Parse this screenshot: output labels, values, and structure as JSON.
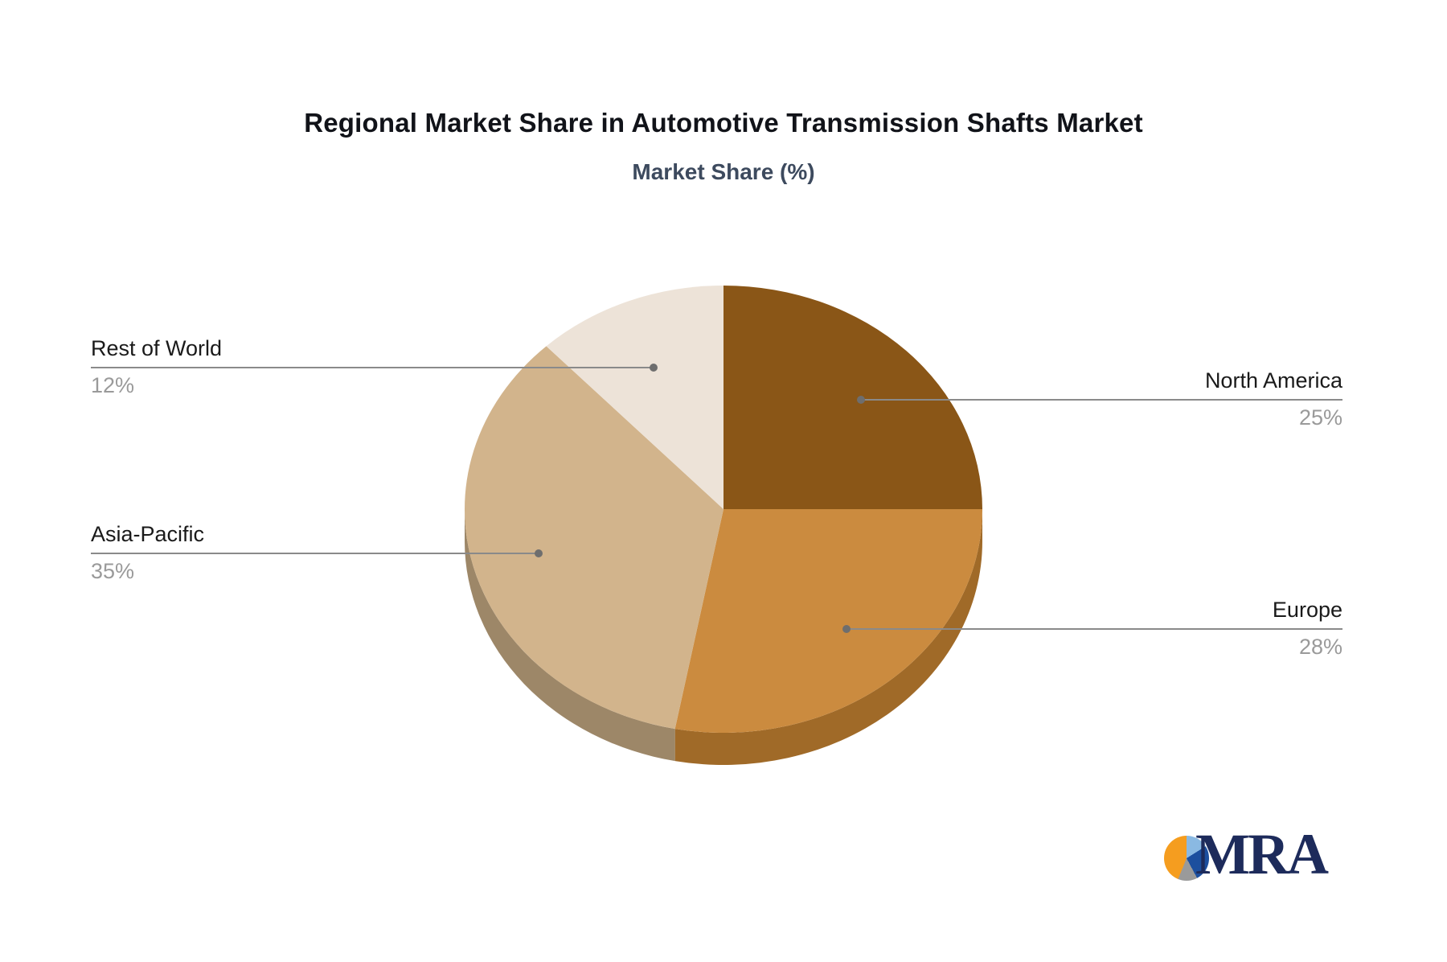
{
  "page": {
    "background": "#ffffff"
  },
  "chart": {
    "title": "Regional Market Share in Automotive Transmission Shafts Market",
    "subtitle": "Market Share (%)"
  },
  "chart_data": {
    "type": "pie",
    "style": "3d",
    "title": "Regional Market Share in Automotive Transmission Shafts Market",
    "subtitle": "Market Share (%)",
    "unit": "%",
    "direction": "clockwise",
    "start_angle": "12-oclock",
    "slices": [
      {
        "label": "North America",
        "value": 25,
        "display_value": "25%",
        "color": "#8a5617",
        "depth_color": "#6e4412",
        "callout_side": "right"
      },
      {
        "label": "Europe",
        "value": 28,
        "display_value": "28%",
        "color": "#cb8b3f",
        "depth_color": "#a06a28",
        "callout_side": "right"
      },
      {
        "label": "Asia-Pacific",
        "value": 35,
        "display_value": "35%",
        "color": "#d2b48c",
        "depth_color": "#9d8768",
        "callout_side": "left"
      },
      {
        "label": "Rest of World",
        "value": 12,
        "display_value": "12%",
        "color": "#ede3d8",
        "depth_color": "#c3b5a4",
        "callout_side": "left"
      }
    ],
    "label_color": "#1a1a1a",
    "value_color": "#9a9a9a",
    "leader_line_color": "#8a8a8a",
    "leader_dot_color": "#6e6e6e",
    "legend_position": "callout-labels"
  },
  "logo": {
    "text": "MRA",
    "text_color": "#1d2b5b",
    "glyph": "pie-chart-icon",
    "glyph_colors": [
      "#f59d1f",
      "#8ab9e2",
      "#1c4f9e",
      "#9a9a9a"
    ]
  }
}
